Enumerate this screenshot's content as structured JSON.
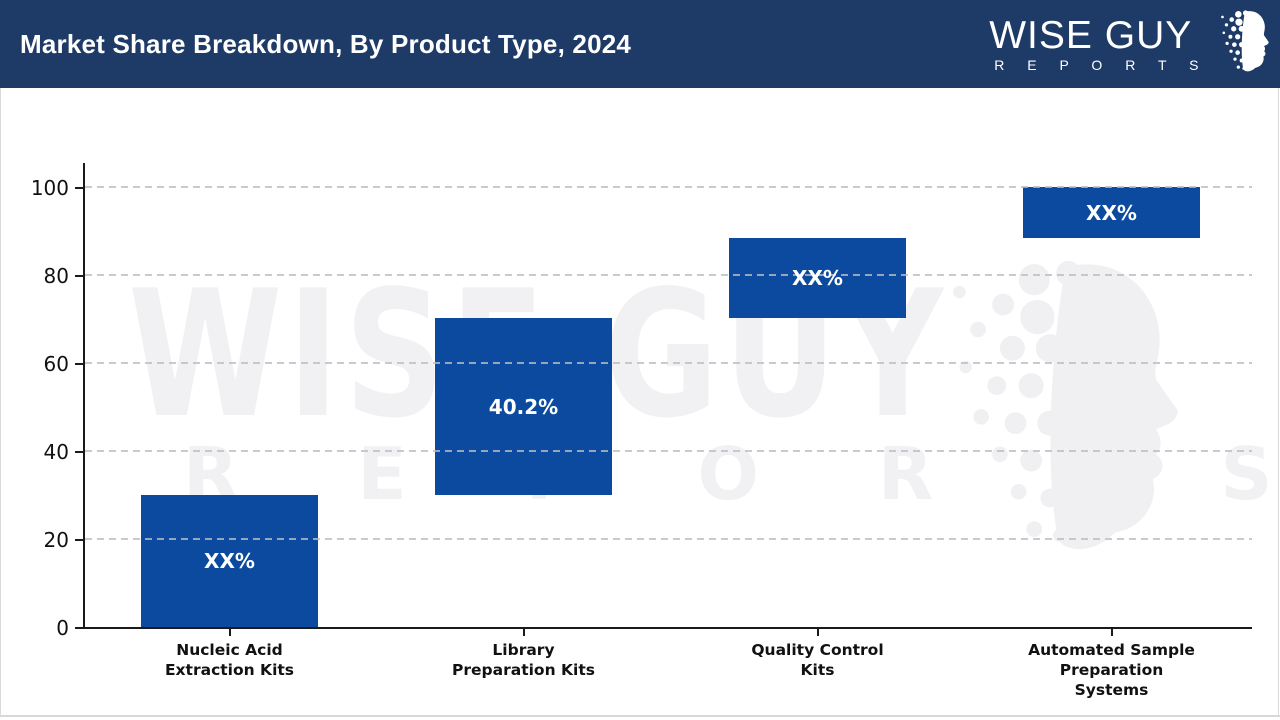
{
  "header": {
    "title": "Market Share Breakdown, By Product Type, 2024",
    "logo": {
      "primary": "WISE GUY",
      "secondary": "R E P O R T S"
    },
    "bg_color": "#1e3a67"
  },
  "watermark": {
    "primary": "WISE GUY",
    "secondary": "R E P O R T S"
  },
  "chart_data": {
    "type": "bar",
    "subtype": "waterfall",
    "title": "Market Share Breakdown, By Product Type, 2024",
    "categories": [
      "Nucleic Acid Extraction Kits",
      "Library Preparation Kits",
      "Quality Control Kits",
      "Automated Sample Preparation Systems"
    ],
    "category_lines": [
      [
        "Nucleic Acid",
        "Extraction Kits"
      ],
      [
        "Library",
        "Preparation Kits"
      ],
      [
        "Quality Control",
        "Kits"
      ],
      [
        "Automated Sample",
        "Preparation",
        "Systems"
      ]
    ],
    "segments": [
      {
        "start": 0,
        "end": 30,
        "label": "XX%"
      },
      {
        "start": 30,
        "end": 70.2,
        "label": "40.2%"
      },
      {
        "start": 70.2,
        "end": 88.4,
        "label": "XX%"
      },
      {
        "start": 88.4,
        "end": 100,
        "label": "XX%"
      }
    ],
    "ylim": [
      0,
      100
    ],
    "yticks": [
      0,
      20,
      40,
      60,
      80,
      100
    ],
    "xlabel": "",
    "ylabel": "",
    "grid": "horizontal-dashed",
    "legend": "none",
    "bar_color": "#0b4a9e",
    "bar_label_color": "#ffffff"
  }
}
